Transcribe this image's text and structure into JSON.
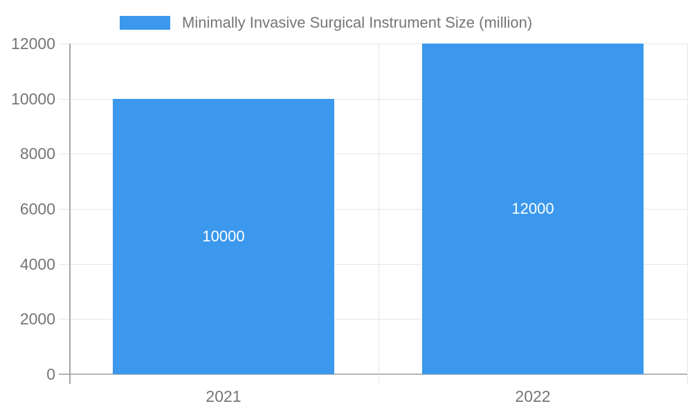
{
  "chart_data": {
    "type": "bar",
    "title": "",
    "legend": {
      "label": "Minimally Invasive Surgical Instrument Size (million)",
      "position": "top"
    },
    "categories": [
      "2021",
      "2022"
    ],
    "series": [
      {
        "name": "Minimally Invasive Surgical Instrument Size (million)",
        "values": [
          10000,
          12000
        ]
      }
    ],
    "bar_value_labels": [
      "10000",
      "12000"
    ],
    "ylim": [
      0,
      12000
    ],
    "yticks": [
      0,
      2000,
      4000,
      6000,
      8000,
      10000,
      12000
    ],
    "xlabel": "",
    "ylabel": "",
    "grid": true
  },
  "colors": {
    "bar": "#3B98EC",
    "grid": "#e6e6e6",
    "axis": "#a6a6a6",
    "baseline": "#b3b3b3",
    "text": "#757575",
    "bar_label_text": "#ffffff",
    "background": "#ffffff"
  }
}
